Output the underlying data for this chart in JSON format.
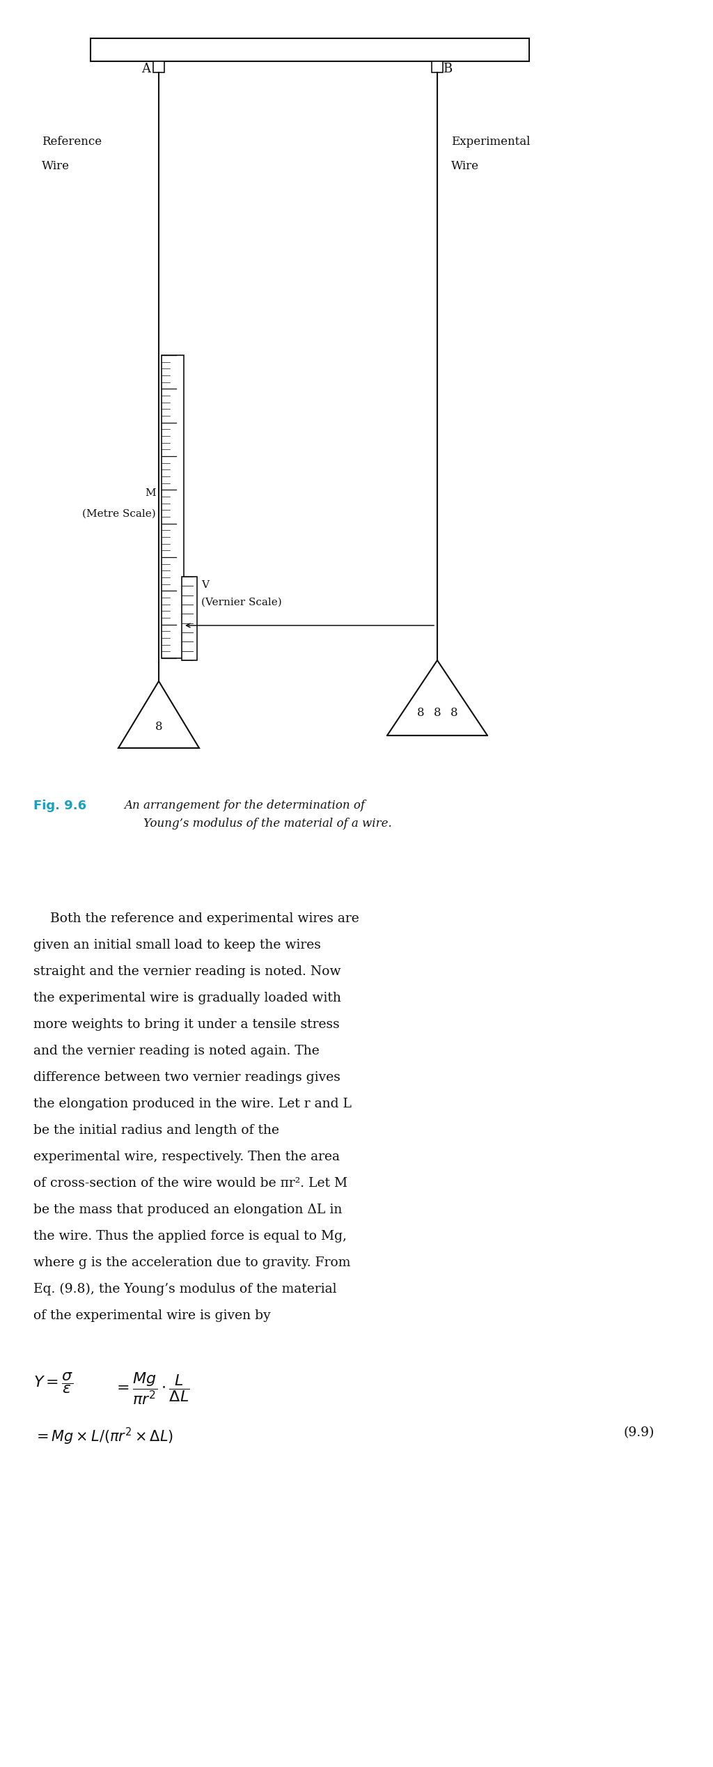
{
  "bg_color": "#ffffff",
  "fig_width": 10.24,
  "fig_height": 25.37,
  "diagram_title_label": "Fig. 9.6",
  "diagram_title_color": "#1a9fbe",
  "diagram_caption_line1": "An arrangement for the determination of",
  "diagram_caption_line2": "Young’s modulus of the material of a wire.",
  "label_A": "A",
  "label_B": "B",
  "label_ref_wire_line1": "Reference",
  "label_ref_wire_line2": "Wire",
  "label_exp_wire_line1": "Experimental",
  "label_exp_wire_line2": "Wire",
  "label_M_line1": "M",
  "label_M_line2": "(Metre Scale)",
  "label_V_line1": "V",
  "label_V_line2": "(Vernier Scale)",
  "para_line1": "    Both the reference and experimental wires are",
  "para_line2": "given an initial small load to keep the wires",
  "para_line3": "straight and the vernier reading is noted. Now",
  "para_line4": "the experimental wire is gradually loaded with",
  "para_line5": "more weights to bring it under a tensile stress",
  "para_line6": "and the vernier reading is noted again. The",
  "para_line7": "difference between two vernier readings gives",
  "para_line8": "the elongation produced in the wire. Let r and L",
  "para_line9": "be the initial radius and length of the",
  "para_line10": "experimental wire, respectively. Then the area",
  "para_line11": "of cross-section of the wire would be πr². Let M",
  "para_line12": "be the mass that produced an elongation ΔL in",
  "para_line13": "the wire. Thus the applied force is equal to Mg,",
  "para_line14": "where g is the acceleration due to gravity. From",
  "para_line15": "Eq. (9.8), the Young’s modulus of the material",
  "para_line16": "of the experimental wire is given by",
  "eq_number": "(9.9)",
  "wire_color": "#111111",
  "text_color": "#111111"
}
